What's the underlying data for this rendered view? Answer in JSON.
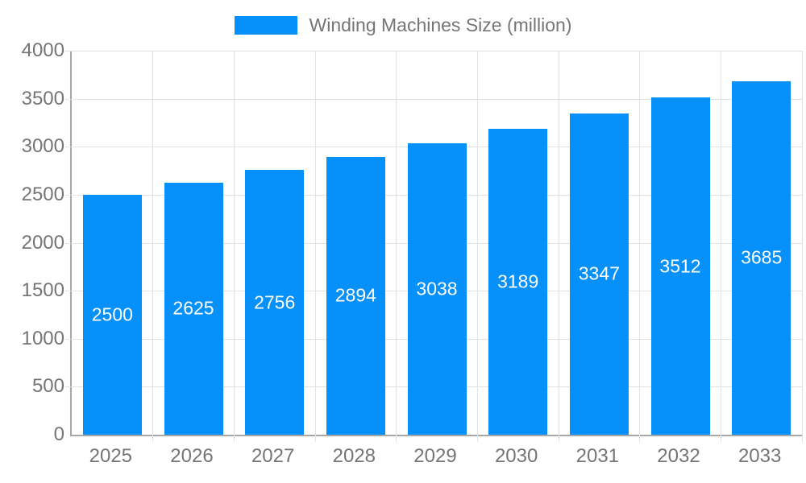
{
  "chart_data": {
    "type": "bar",
    "title": "Winding Machines Size (million)",
    "categories": [
      "2025",
      "2026",
      "2027",
      "2028",
      "2029",
      "2030",
      "2031",
      "2032",
      "2033"
    ],
    "values": [
      2500,
      2625,
      2756,
      2894,
      3038,
      3189,
      3347,
      3512,
      3685
    ],
    "xlabel": "",
    "ylabel": "",
    "ylim": [
      0,
      4000
    ],
    "ytick_step": 500,
    "grid": true,
    "legend_position": "top-center",
    "data_labels": "inside-center",
    "colors": {
      "bar": "#0591f9",
      "bar_label_text": "#ffffff",
      "axis_line": "#a6a6a6",
      "gridline": "#e2e2e2",
      "tick_text": "#757575",
      "legend_text": "#757575",
      "background": "#ffffff"
    }
  }
}
